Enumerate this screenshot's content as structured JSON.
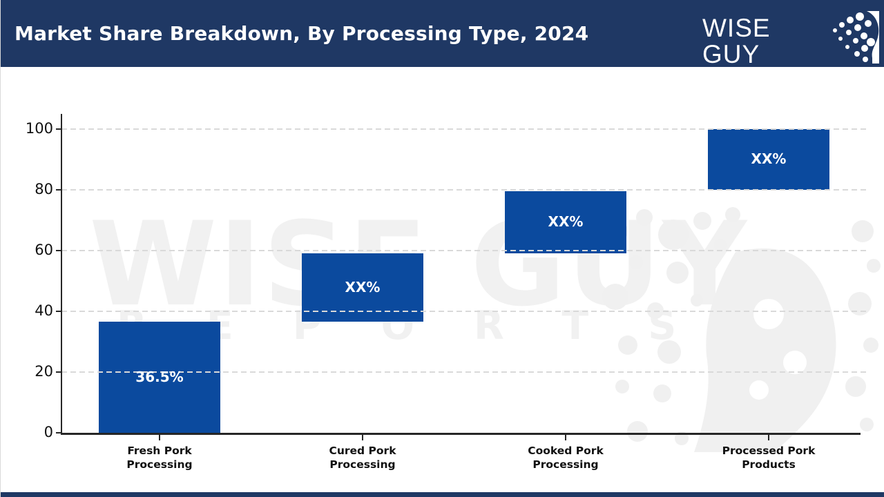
{
  "header": {
    "title": "Market Share Breakdown, By Processing Type, 2024",
    "logo": {
      "line1": "WISE GUY",
      "line2": "REPORTS"
    }
  },
  "watermark": {
    "line1": "WISE GUY",
    "line2": "REPORTS"
  },
  "colors": {
    "header_bg": "#1f3864",
    "bar": "#0b4a9e",
    "grid": "#d9d9d9",
    "axis": "#262626",
    "bar_label": "#ffffff",
    "watermark": "#f1f1f1"
  },
  "chart_data": {
    "type": "bar",
    "subtype": "waterfall",
    "title": "Market Share Breakdown, By Processing Type, 2024",
    "categories": [
      "Fresh Pork Processing",
      "Cured Pork Processing",
      "Cooked Pork Processing",
      "Processed Pork Products"
    ],
    "segments": [
      {
        "category": "Fresh Pork Processing",
        "label_lines": [
          "Fresh Pork",
          "Processing"
        ],
        "start": 0,
        "end": 36.5,
        "label": "36.5%"
      },
      {
        "category": "Cured Pork Processing",
        "label_lines": [
          "Cured Pork",
          "Processing"
        ],
        "start": 36.5,
        "end": 59,
        "label": "XX%"
      },
      {
        "category": "Cooked Pork Processing",
        "label_lines": [
          "Cooked Pork",
          "Processing"
        ],
        "start": 59,
        "end": 79.5,
        "label": "XX%"
      },
      {
        "category": "Processed Pork Products",
        "label_lines": [
          "Processed Pork",
          "Products"
        ],
        "start": 80,
        "end": 100,
        "label": "XX%"
      }
    ],
    "y_ticks": [
      0,
      20,
      40,
      60,
      80,
      100
    ],
    "ylim": [
      0,
      105
    ],
    "xlabel": "",
    "ylabel": "",
    "grid": "horizontal-dashed",
    "legend": "none"
  }
}
